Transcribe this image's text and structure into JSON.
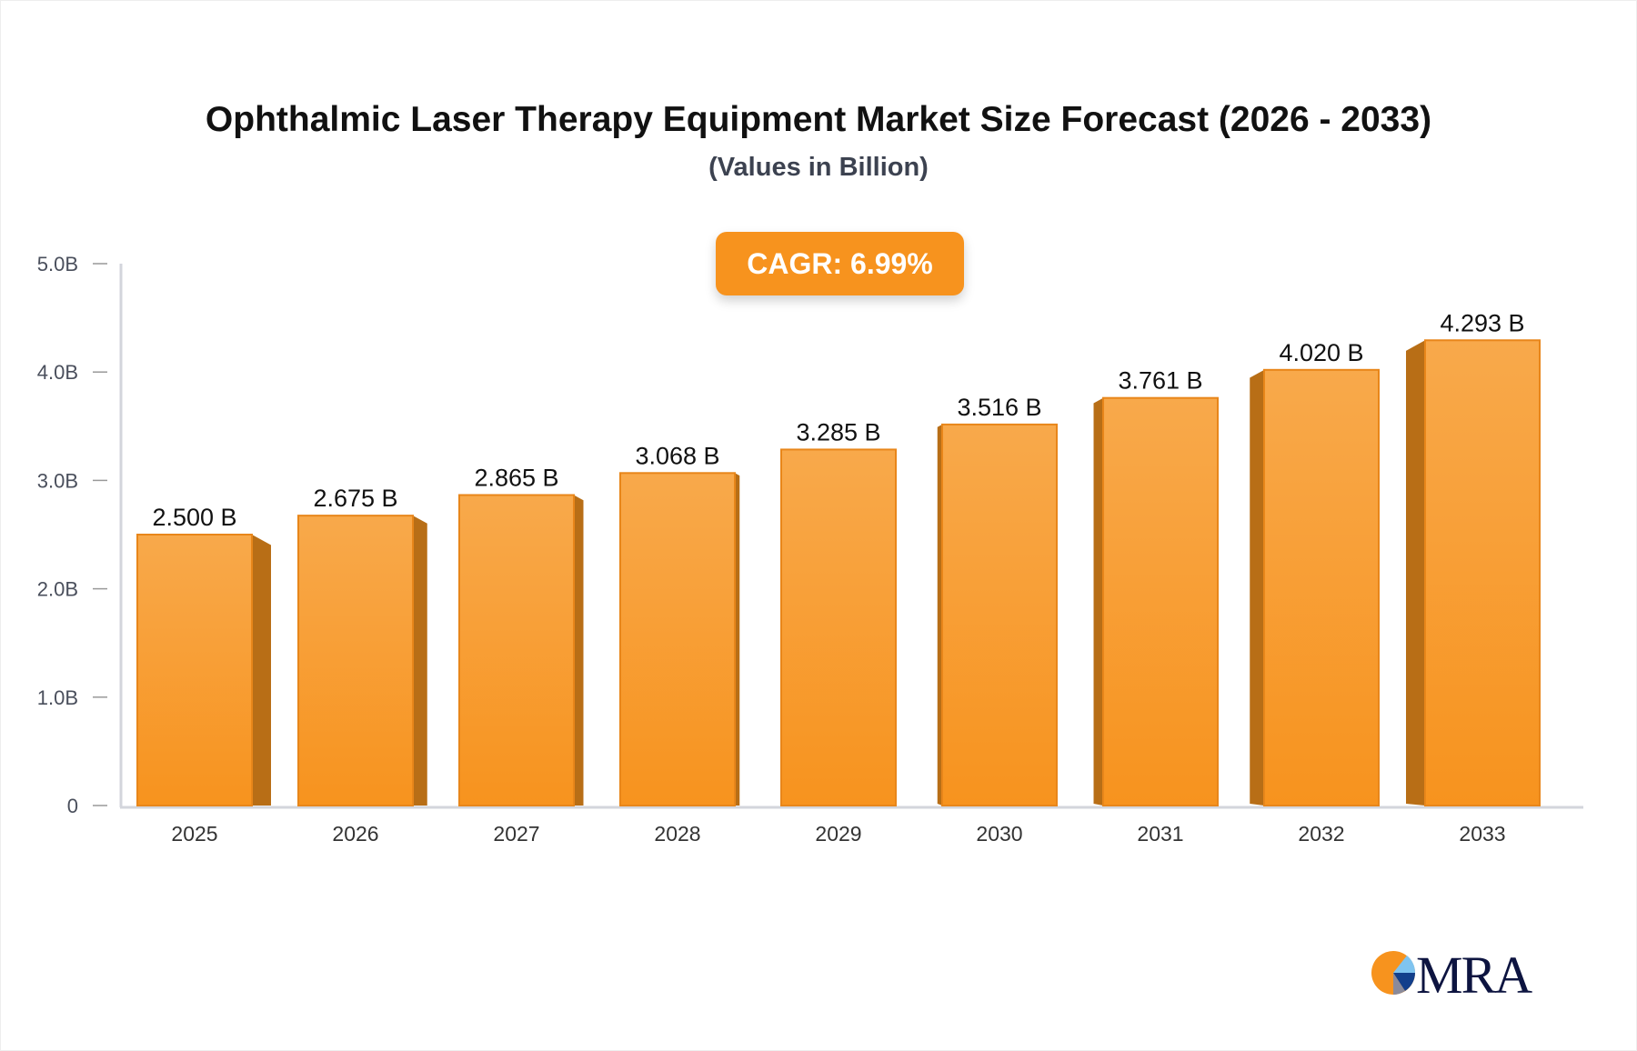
{
  "chart_data": {
    "type": "bar",
    "title": "Ophthalmic Laser Therapy Equipment Market Size Forecast (2026 - 2033)",
    "subtitle": "(Values in Billion)",
    "annotation": "CAGR: 6.99%",
    "categories": [
      "2025",
      "2026",
      "2027",
      "2028",
      "2029",
      "2030",
      "2031",
      "2032",
      "2033"
    ],
    "values": [
      2.5,
      2.675,
      2.865,
      3.068,
      3.285,
      3.516,
      3.761,
      4.02,
      4.293
    ],
    "value_labels": [
      "2.500 B",
      "2.675 B",
      "2.865 B",
      "3.068 B",
      "3.285 B",
      "3.516 B",
      "3.761 B",
      "4.020 B",
      "4.293 B"
    ],
    "ylim": [
      0,
      5
    ],
    "yticks": [
      0,
      1,
      2,
      3,
      4,
      5
    ],
    "ytick_labels": [
      "0",
      "1.0B",
      "2.0B",
      "3.0B",
      "4.0B",
      "5.0B"
    ],
    "grid": false,
    "xlabel": "",
    "ylabel": "",
    "colors": {
      "bar_front": "#f7931e",
      "bar_top": "#f9a84a",
      "bar_side": "#b86e16",
      "cagr_badge": "#f7931e"
    }
  },
  "logo": {
    "text": "MRA",
    "colors": {
      "orange": "#f7931e",
      "navy": "#0d1440",
      "light_blue": "#7fc4f0",
      "blue": "#123f8c"
    }
  }
}
